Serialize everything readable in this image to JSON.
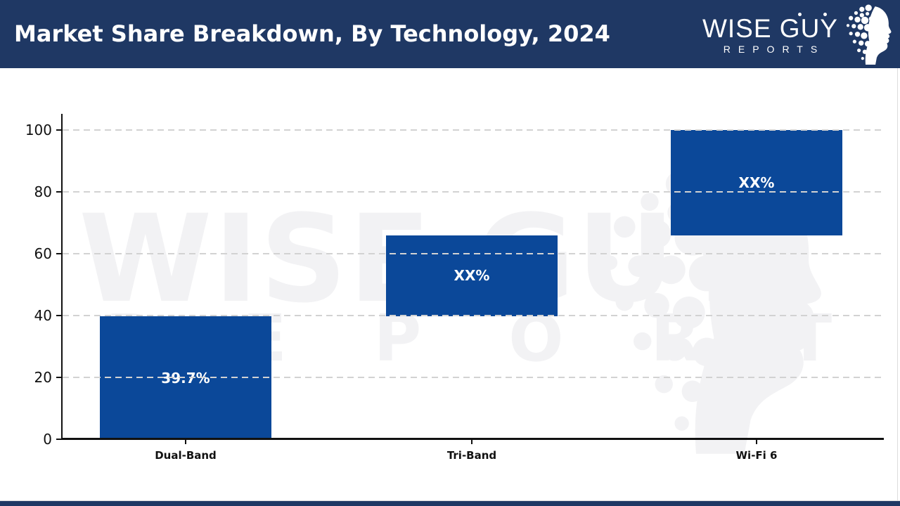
{
  "header": {
    "title": "Market Share Breakdown, By Technology, 2024",
    "logo": {
      "line1": "WISE GUY",
      "line2": "REPORTS"
    }
  },
  "watermark": {
    "line1": "WISE GUY",
    "line2": "R E P O R T S"
  },
  "colors": {
    "header_bg": "#1f3864",
    "bar": "#0b4899",
    "grid": "#d2d2d2",
    "axis": "#111111",
    "watermark": "#f2f2f4",
    "bar_label": "#ffffff"
  },
  "chart_data": {
    "type": "bar",
    "subtype": "waterfall-floating-bars",
    "title": "Market Share Breakdown, By Technology, 2024",
    "xlabel": "",
    "ylabel": "",
    "categories": [
      "Dual-Band",
      "Tri-Band",
      "Wi-Fi 6"
    ],
    "bars": [
      {
        "category": "Dual-Band",
        "start": 0,
        "end": 39.7,
        "label": "39.7%"
      },
      {
        "category": "Tri-Band",
        "start": 39.7,
        "end": 66.0,
        "label": "XX%"
      },
      {
        "category": "Wi-Fi 6",
        "start": 66.0,
        "end": 100.0,
        "label": "XX%"
      }
    ],
    "yticks": [
      0,
      20,
      40,
      60,
      80,
      100
    ],
    "ylim": [
      0,
      107
    ],
    "grid": "horizontal-dashed",
    "legend": "none"
  }
}
